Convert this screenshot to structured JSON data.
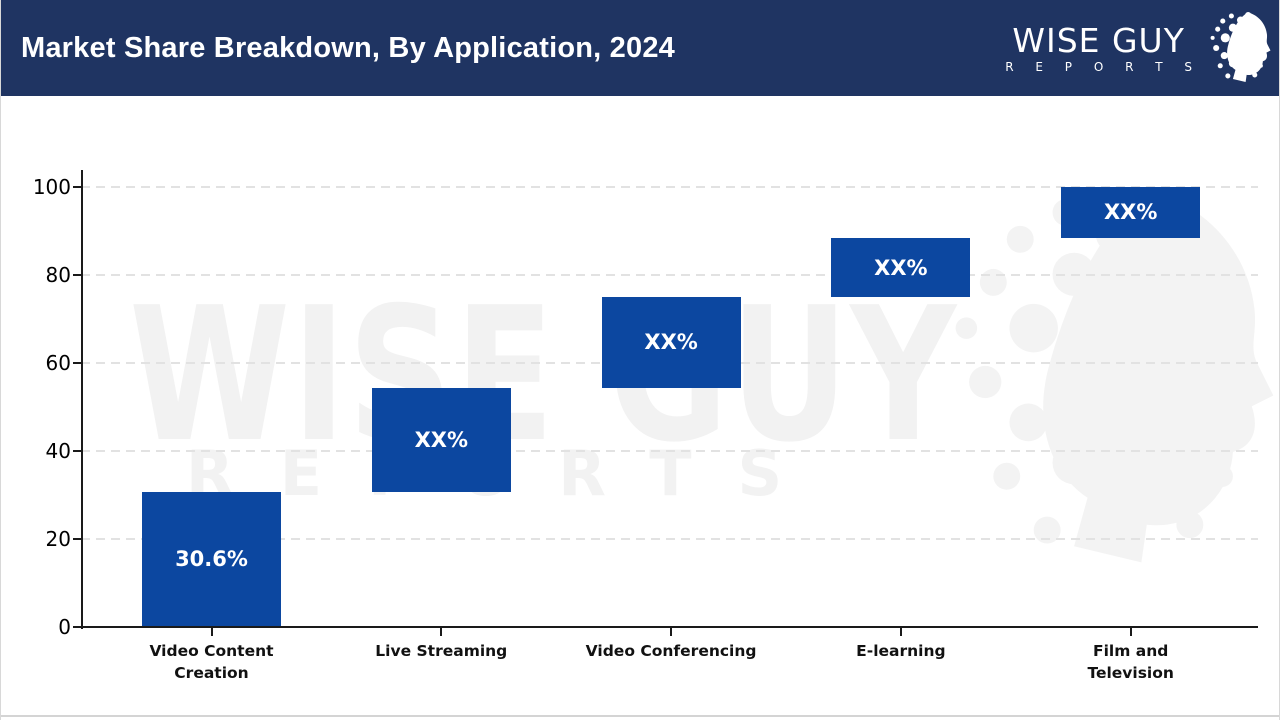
{
  "header": {
    "title": "Market Share Breakdown, By Application, 2024",
    "logo_line1": "WISE GUY",
    "logo_line2": "R E P O R T S",
    "head_icon": "dotted-head-profile-icon",
    "background_color": "#1f3462"
  },
  "watermark": {
    "line1": "WISE GUY",
    "line2": "REPORTS",
    "head_icon": "dotted-head-profile-icon",
    "color": "#f2f2f2"
  },
  "chart_data": {
    "type": "waterfall",
    "title": "Market Share Breakdown, By Application, 2024",
    "categories": [
      "Video Content\nCreation",
      "Live Streaming",
      "Video Conferencing",
      "E-learning",
      "Film and\nTelevision"
    ],
    "segments": [
      {
        "category": "Video Content Creation",
        "start": 0,
        "end": 30.6,
        "value": 30.6,
        "label": "30.6%"
      },
      {
        "category": "Live Streaming",
        "start": 30.6,
        "end": 54.3,
        "value": 23.7,
        "label": "XX%"
      },
      {
        "category": "Video Conferencing",
        "start": 54.3,
        "end": 74.8,
        "value": 20.5,
        "label": "XX%"
      },
      {
        "category": "E-learning",
        "start": 74.8,
        "end": 88.2,
        "value": 13.4,
        "label": "XX%"
      },
      {
        "category": "Film and Television",
        "start": 88.2,
        "end": 100,
        "value": 11.8,
        "label": "XX%"
      }
    ],
    "yticks": [
      0,
      20,
      40,
      60,
      80,
      100
    ],
    "ylim": [
      0,
      100
    ],
    "bar_color": "#0c47a0",
    "grid": {
      "axis": "y",
      "style": "dashed",
      "color": "#e2e2e2"
    },
    "legend_position": "none"
  }
}
